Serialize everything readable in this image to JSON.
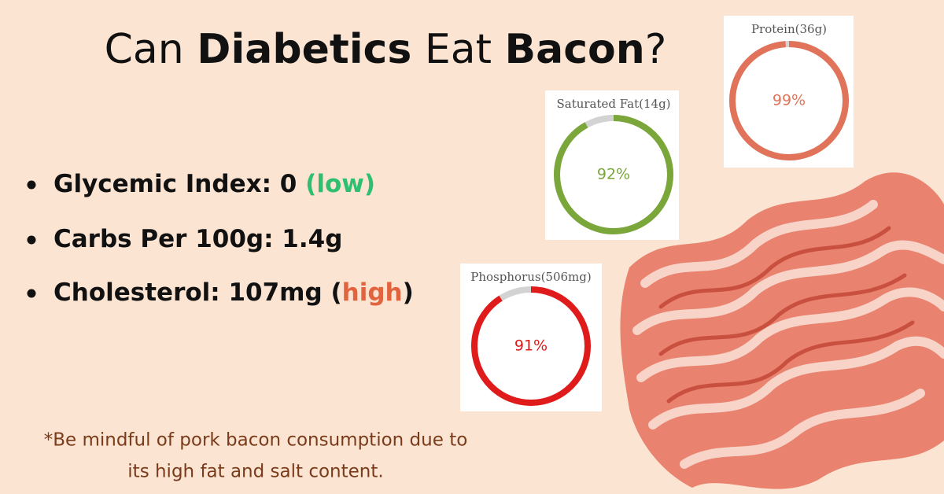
{
  "title": {
    "parts": [
      {
        "text": "Can ",
        "bold": false
      },
      {
        "text": "Diabetics",
        "bold": true
      },
      {
        "text": " Eat ",
        "bold": false
      },
      {
        "text": "Bacon",
        "bold": true
      },
      {
        "text": "?",
        "bold": false
      }
    ]
  },
  "bullets": [
    {
      "parts": [
        {
          "text": "Glycemic Index: 0 ",
          "color": "#111111"
        },
        {
          "text": "(low)",
          "color": "#2fbf71"
        }
      ]
    },
    {
      "parts": [
        {
          "text": "Carbs Per 100g: 1.4g",
          "color": "#111111"
        }
      ]
    },
    {
      "parts": [
        {
          "text": "Cholesterol: 107mg (",
          "color": "#111111"
        },
        {
          "text": "high",
          "color": "#e2643f"
        },
        {
          "text": ")",
          "color": "#111111"
        }
      ]
    }
  ],
  "footnote": [
    "*Be mindful of pork bacon consumption due to",
    "its high fat and salt content."
  ],
  "gauges": [
    {
      "label": "Protein(36g)",
      "value": 99,
      "value_label": "99%",
      "color": "#e0735a"
    },
    {
      "label": "Saturated Fat(14g)",
      "value": 92,
      "value_label": "92%",
      "color": "#7aa63a"
    },
    {
      "label": "Phosphorus(506mg)",
      "value": 91,
      "value_label": "91%",
      "color": "#e01b1b"
    }
  ]
}
